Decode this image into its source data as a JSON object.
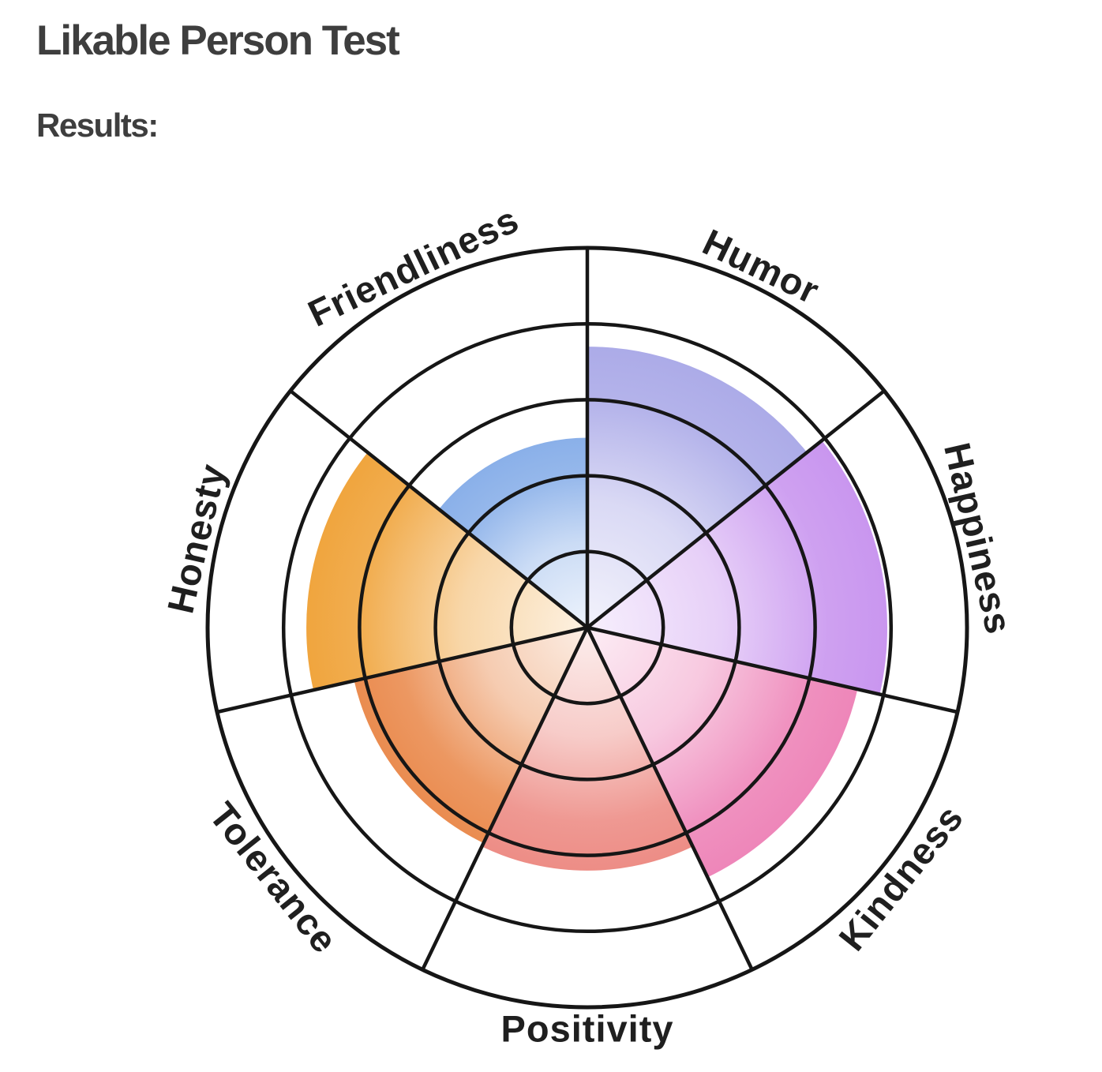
{
  "chart_data": {
    "type": "polar_area",
    "title": "Likable Person Test",
    "subtitle": "Results:",
    "categories": [
      "Humor",
      "Happiness",
      "Kindness",
      "Positivity",
      "Tolerance",
      "Honesty",
      "Friendliness"
    ],
    "series": [
      {
        "name": "Results",
        "values": [
          74,
          79,
          73,
          64,
          63,
          74,
          50
        ]
      }
    ],
    "value_range": [
      0,
      100
    ],
    "grid_rings": 5,
    "ring_step": 20,
    "start_angle_deg": 0,
    "direction": "clockwise",
    "legend_position": "none",
    "colors": [
      "#acabe8",
      "#c996ef",
      "#ee86b9",
      "#ed8d86",
      "#ea8c50",
      "#f0a53e",
      "#8ab0e9"
    ],
    "grid_color": "#161616",
    "label_color": "#1f1f1f",
    "heading_color": "#3e3e3e",
    "background_color": "#ffffff"
  }
}
